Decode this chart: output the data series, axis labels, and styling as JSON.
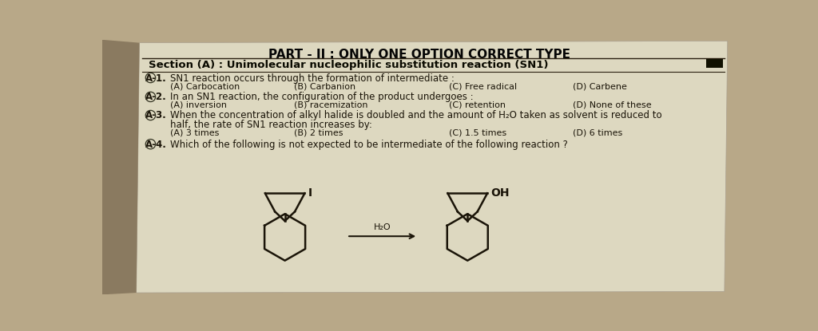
{
  "bg_color_top": "#b8a888",
  "bg_color_left": "#8a7a60",
  "page_color": "#e8e0cc",
  "title": "PART - II : ONLY ONE OPTION CORRECT TYPE",
  "section_heading": "Section (A) : Unimolecular nucleophilic substitution reaction (SN1)",
  "q1_num": "A-1.",
  "q1_stem": "SN1 reaction occurs through the formation of intermediate :",
  "q1_a": "(A) Carbocation",
  "q1_b": "(B) Carbanion",
  "q1_c": "(C) Free radical",
  "q1_d": "(D) Carbene",
  "q2_num": "A-2.",
  "q2_stem": "In an SN1 reaction, the configuration of the product undergoes :",
  "q2_a": "(A) inversion",
  "q2_b": "(B) racemization",
  "q2_c": "(C) retention",
  "q2_d": "(D) None of these",
  "q3_num": "A-3.",
  "q3_stem1": "When the concentration of alkyl halide is doubled and the amount of H₂O taken as solvent is reduced to",
  "q3_stem2": "half, the rate of SN1 reaction increases by:",
  "q3_a": "(A) 3 times",
  "q3_b": "(B) 2 times",
  "q3_c": "(C) 1.5 times",
  "q3_d": "(D) 6 times",
  "q4_num": "A-4.",
  "q4_stem": "Which of the following is not expected to be intermediate of the following reaction ?",
  "text_color": "#1a1408",
  "title_color": "#0a0a00",
  "line_color": "#2a2010"
}
